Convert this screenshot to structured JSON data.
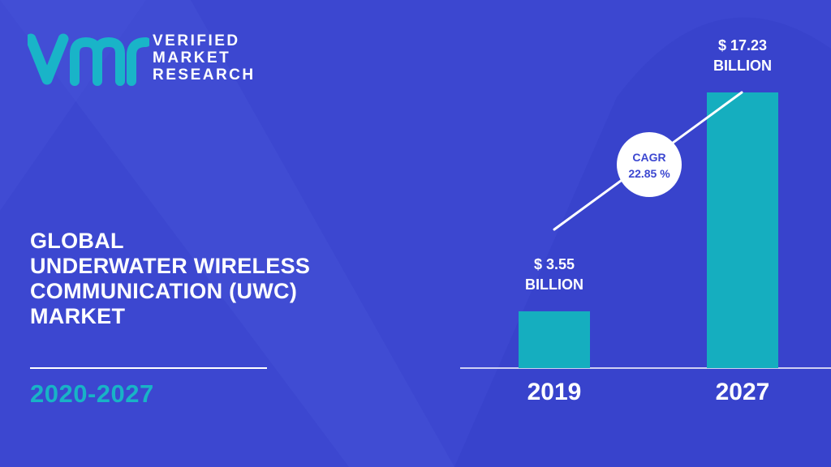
{
  "brand": {
    "line1": "VERIFIED",
    "line2": "MARKET",
    "line3": "RESEARCH",
    "logo_color": "#19b4c8"
  },
  "report": {
    "title_lines": [
      "GLOBAL",
      "UNDERWATER WIRELESS",
      "COMMUNICATION (UWC)",
      "MARKET"
    ],
    "period": "2020-2027"
  },
  "colors": {
    "background": "#3c47d0",
    "bar": "#15aebf",
    "accent_text": "#18b3c6",
    "cagr_text": "#3c47d0"
  },
  "chart_data": {
    "type": "bar",
    "categories": [
      "2019",
      "2027"
    ],
    "values": [
      3.55,
      17.23
    ],
    "value_labels": [
      [
        "$ 3.55",
        "BILLION"
      ],
      [
        "$ 17.23",
        "BILLION"
      ]
    ],
    "unit": "USD Billion",
    "cagr_label": "CAGR",
    "cagr_value": "22.85 %",
    "ylim": [
      0,
      17.23
    ],
    "title": "",
    "xlabel": "",
    "ylabel": ""
  }
}
